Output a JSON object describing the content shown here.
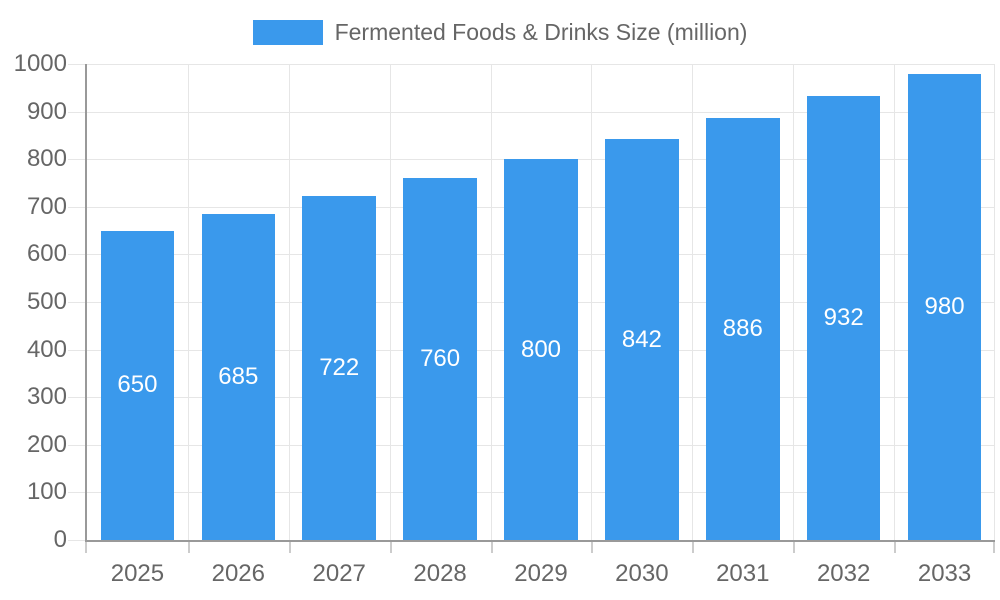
{
  "legend": {
    "label": "Fermented Foods & Drinks Size (million)"
  },
  "chart_data": {
    "type": "bar",
    "title": "Fermented Foods & Drinks Size (million)",
    "categories": [
      "2025",
      "2026",
      "2027",
      "2028",
      "2029",
      "2030",
      "2031",
      "2032",
      "2033"
    ],
    "values": [
      650,
      685,
      722,
      760,
      800,
      842,
      886,
      932,
      980
    ],
    "xlabel": "",
    "ylabel": "",
    "ylim": [
      0,
      1000
    ],
    "ytick_step": 100,
    "yticks": [
      0,
      100,
      200,
      300,
      400,
      500,
      600,
      700,
      800,
      900,
      1000
    ],
    "grid": true,
    "value_labels_position": "inside-center",
    "legend_position": "top-center"
  },
  "colors": {
    "bar": "#3A99EC",
    "value_label_text": "#FFFFFF",
    "axis_line": "#999999",
    "gridline": "#E6E6E6",
    "tick": "#CCCCCC",
    "axis_text": "#666666",
    "legend_text": "#666666",
    "background": "#FFFFFF"
  }
}
